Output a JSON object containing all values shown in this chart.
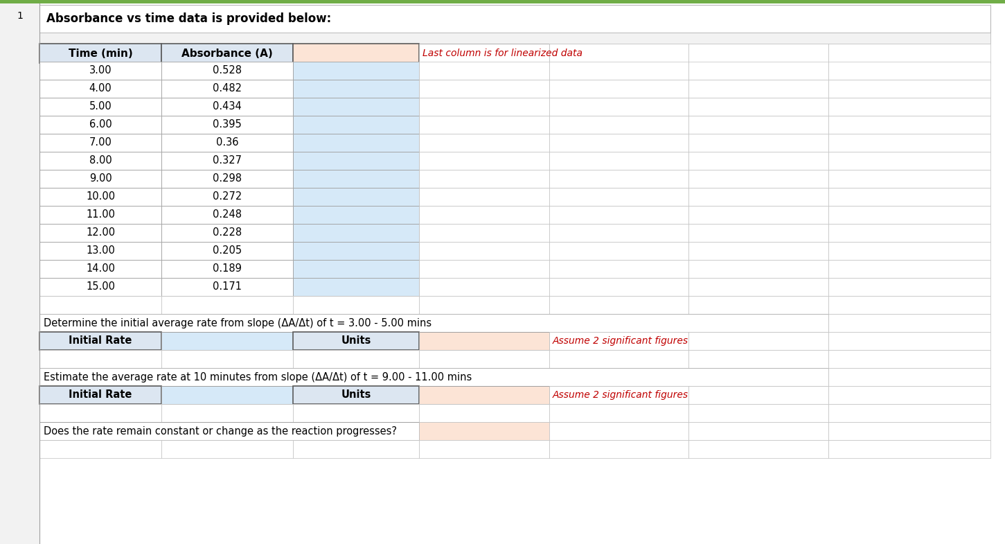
{
  "title_row_label": "1",
  "title_text": "Absorbance vs time data is provided below:",
  "col0_header": "Time (min)",
  "col1_header": "Absorbance (A)",
  "time_values": [
    "3.00",
    "4.00",
    "5.00",
    "6.00",
    "7.00",
    "8.00",
    "9.00",
    "10.00",
    "11.00",
    "12.00",
    "13.00",
    "14.00",
    "15.00"
  ],
  "abs_values": [
    "0.528",
    "0.482",
    "0.434",
    "0.395",
    "0.36",
    "0.327",
    "0.298",
    "0.272",
    "0.248",
    "0.228",
    "0.205",
    "0.189",
    "0.171"
  ],
  "last_col_note": "Last column is for linearized data",
  "determine_text": "Determine the initial average rate from slope (ΔA/Δt) of t = 3.00 - 5.00 mins",
  "estimate_text": "Estimate the average rate at 10 minutes from slope (ΔA/Δt) of t = 9.00 - 11.00 mins",
  "rate_label": "Initial Rate",
  "units_label": "Units",
  "assume_text": "Assume 2 significant figures",
  "final_text": "Does the rate remain constant or change as the reaction progresses?",
  "color_blue_light": "#d6e9f8",
  "color_peach": "#fce4d6",
  "color_white": "#ffffff",
  "color_header_bg": "#e0e0e0",
  "color_row_alt": "#f2f2f2",
  "color_border_dark": "#5a5a5a",
  "color_border_light": "#b0b0b0",
  "color_teal_top": "#70ad47",
  "color_red_italic": "#c00000",
  "color_title_bg": "#ffffff",
  "fig_bg": "#ffffff",
  "note_row_bg": "#f5f5f5",
  "outer_left_bg": "#f5f5f5"
}
